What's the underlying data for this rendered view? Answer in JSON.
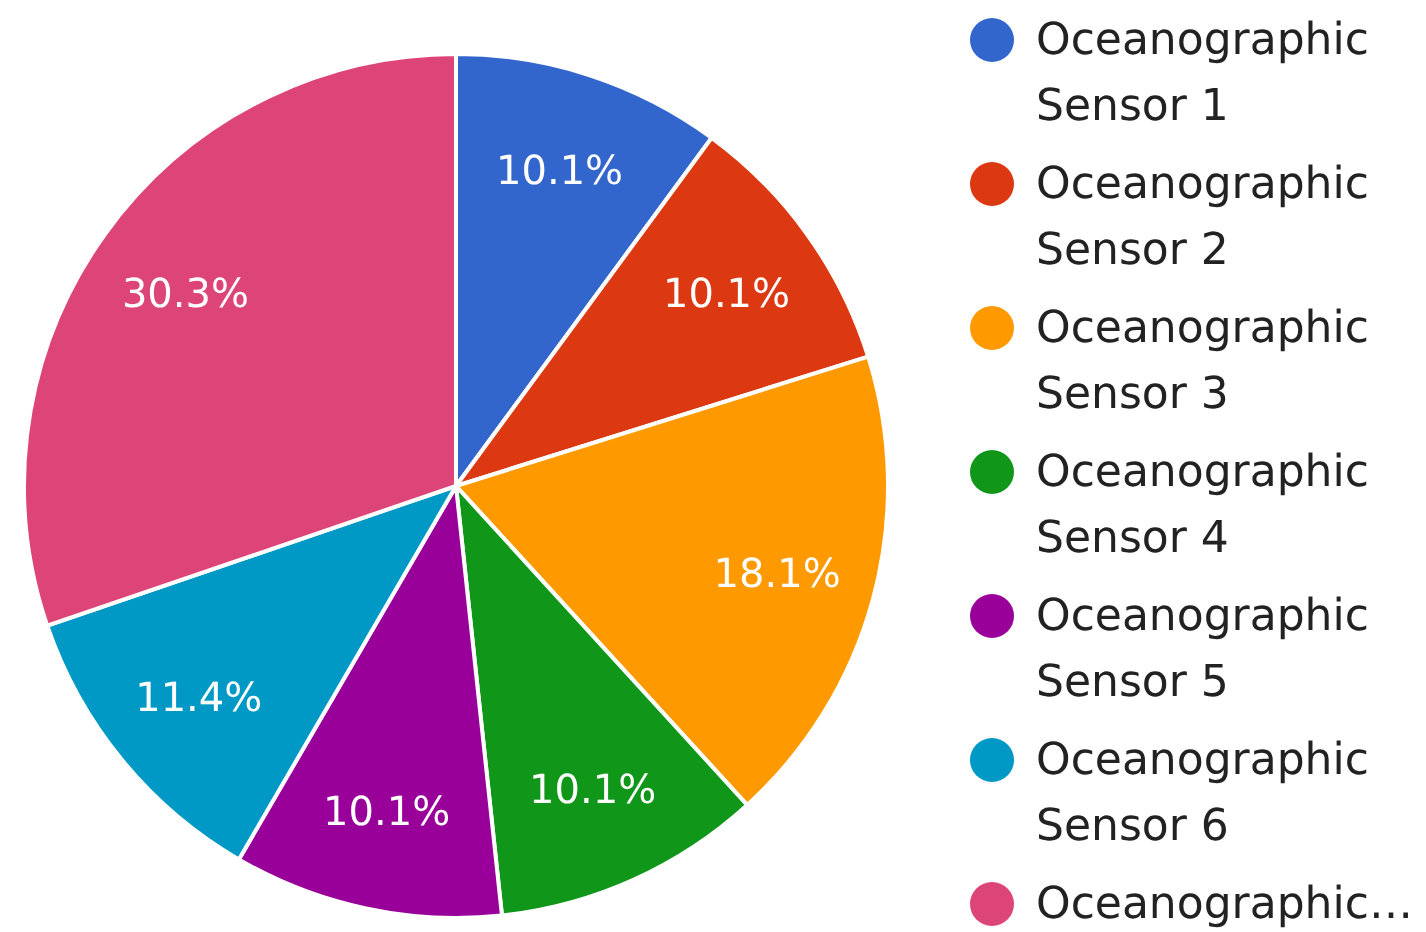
{
  "chart_data": {
    "type": "pie",
    "categories": [
      "Oceanographic Sensor 1",
      "Oceanographic Sensor 2",
      "Oceanographic Sensor 3",
      "Oceanographic Sensor 4",
      "Oceanographic Sensor 5",
      "Oceanographic Sensor 6",
      "Oceanographic…"
    ],
    "values": [
      10.1,
      10.1,
      18.1,
      10.1,
      10.1,
      11.4,
      30.3
    ],
    "value_labels": [
      "10.1%",
      "10.1%",
      "18.1%",
      "10.1%",
      "10.1%",
      "11.4%",
      "30.3%"
    ],
    "colors": [
      "#3366cc",
      "#dc3912",
      "#ff9900",
      "#109618",
      "#990099",
      "#0099c6",
      "#dd4477"
    ],
    "legend": "right"
  }
}
